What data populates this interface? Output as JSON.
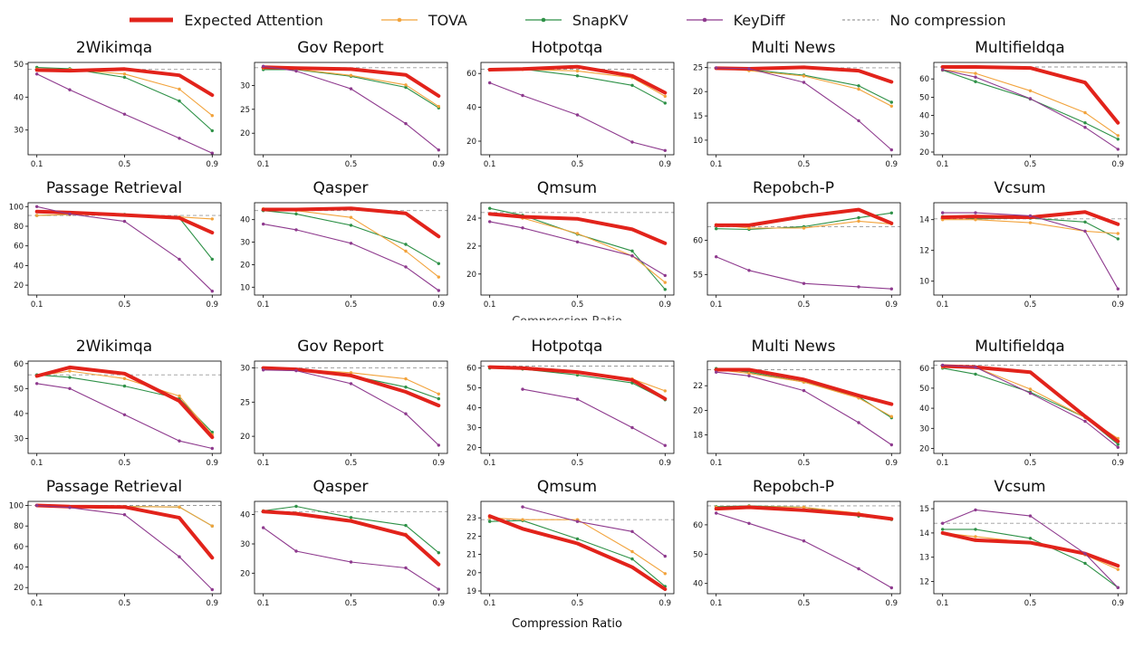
{
  "legend": {
    "items": [
      {
        "label": "Expected Attention",
        "color": "#e2231b",
        "style": "thick"
      },
      {
        "label": "TOVA",
        "color": "#f2a33c",
        "style": "marker"
      },
      {
        "label": "SnapKV",
        "color": "#2e9147",
        "style": "marker"
      },
      {
        "label": "KeyDiff",
        "color": "#8e3a8e",
        "style": "marker"
      },
      {
        "label": "No compression",
        "color": "#9a9a9a",
        "style": "dashed"
      }
    ]
  },
  "chart_data": {
    "type": "line",
    "xlabel": "Compression Ratio",
    "x": [
      0.1,
      0.25,
      0.5,
      0.75,
      0.9
    ],
    "xticks": [
      0.1,
      0.5,
      0.9
    ],
    "xlim": [
      0.06,
      0.94
    ],
    "series_names": [
      "Expected Attention",
      "TOVA",
      "SnapKV",
      "KeyDiff"
    ],
    "baseline_name": "No compression",
    "groups": [
      {
        "subplots": [
          {
            "title": "2Wikimqa",
            "ylim": [
              22.5,
              50.5
            ],
            "yticks": [
              30,
              40,
              50
            ],
            "no_compression": 48.4,
            "series": {
              "Expected Attention": [
                48.2,
                48.0,
                48.5,
                46.6,
                40.6
              ],
              "TOVA": [
                48.5,
                48.4,
                47.0,
                42.4,
                34.4
              ],
              "SnapKV": [
                49.0,
                48.6,
                46.0,
                38.8,
                29.8
              ],
              "KeyDiff": [
                47.0,
                42.2,
                34.8,
                27.5,
                23.0
              ]
            }
          },
          {
            "title": "Gov Report",
            "ylim": [
              15.5,
              34.8
            ],
            "yticks": [
              20,
              25,
              30
            ],
            "no_compression": 33.7,
            "series": {
              "Expected Attention": [
                33.8,
                33.6,
                33.4,
                32.2,
                27.8
              ],
              "TOVA": [
                33.6,
                33.4,
                32.1,
                30.1,
                25.6
              ],
              "SnapKV": [
                33.3,
                33.3,
                31.9,
                29.6,
                25.3
              ],
              "KeyDiff": [
                34.0,
                33.0,
                29.3,
                22.0,
                16.5
              ]
            }
          },
          {
            "title": "Hotpotqa",
            "ylim": [
              12,
              66.5
            ],
            "yticks": [
              20,
              40,
              60
            ],
            "no_compression": 62.5,
            "series": {
              "Expected Attention": [
                62.2,
                62.6,
                64.0,
                58.6,
                48.6
              ],
              "TOVA": [
                62.0,
                62.4,
                61.5,
                57.5,
                46.5
              ],
              "SnapKV": [
                62.0,
                62.6,
                58.6,
                53.0,
                42.5
              ],
              "KeyDiff": [
                54.5,
                47.0,
                35.5,
                19.5,
                14.5
              ]
            }
          },
          {
            "title": "Multi News",
            "ylim": [
              7,
              26
            ],
            "yticks": [
              10,
              15,
              20,
              25
            ],
            "no_compression": 24.9,
            "series": {
              "Expected Attention": [
                24.8,
                24.7,
                25.0,
                24.3,
                22.0
              ],
              "TOVA": [
                24.8,
                24.3,
                23.2,
                20.5,
                17.0
              ],
              "SnapKV": [
                24.8,
                24.5,
                23.4,
                21.2,
                17.8
              ],
              "KeyDiff": [
                24.9,
                24.7,
                21.9,
                14.0,
                8.0
              ]
            }
          },
          {
            "title": "Multifieldqa",
            "ylim": [
              18.5,
              69
            ],
            "yticks": [
              20,
              30,
              40,
              50,
              60
            ],
            "no_compression": 66.5,
            "series": {
              "Expected Attention": [
                66.5,
                66.5,
                66.0,
                58.0,
                36.0
              ],
              "TOVA": [
                65.0,
                63.0,
                53.5,
                41.5,
                29.0
              ],
              "SnapKV": [
                64.8,
                58.5,
                49.0,
                36.0,
                27.0
              ],
              "KeyDiff": [
                65.0,
                61.0,
                49.2,
                33.5,
                21.5
              ]
            }
          },
          {
            "title": "Passage Retrieval",
            "ylim": [
              10,
              104
            ],
            "yticks": [
              20,
              40,
              60,
              80,
              100
            ],
            "no_compression": 91,
            "series": {
              "Expected Attention": [
                95,
                94,
                91.5,
                88.5,
                73.5
              ],
              "TOVA": [
                91,
                92,
                91.5,
                89.5,
                87.5
              ],
              "SnapKV": [
                91,
                92,
                92,
                88.5,
                46.5
              ],
              "KeyDiff": [
                100,
                92.5,
                85,
                46.5,
                14
              ]
            }
          },
          {
            "title": "Qasper",
            "ylim": [
              6.5,
              47.5
            ],
            "yticks": [
              10,
              20,
              30,
              40
            ],
            "no_compression": 44,
            "series": {
              "Expected Attention": [
                44.5,
                44.5,
                45.0,
                42.8,
                32.5
              ],
              "TOVA": [
                44.8,
                44.0,
                41.0,
                26.0,
                14.5
              ],
              "SnapKV": [
                44.0,
                42.5,
                37.5,
                29.0,
                20.5
              ],
              "KeyDiff": [
                38.0,
                35.5,
                29.5,
                19.0,
                8.5
              ]
            }
          },
          {
            "title": "Qmsum",
            "ylim": [
              18.5,
              25.1
            ],
            "yticks": [
              20,
              22,
              24
            ],
            "no_compression": 24.4,
            "series": {
              "Expected Attention": [
                24.3,
                24.1,
                23.95,
                23.2,
                22.2
              ],
              "TOVA": [
                24.3,
                24.0,
                22.9,
                21.3,
                19.4
              ],
              "SnapKV": [
                24.7,
                24.2,
                22.85,
                21.65,
                18.9
              ],
              "KeyDiff": [
                23.75,
                23.3,
                22.3,
                21.3,
                19.9
              ]
            }
          },
          {
            "title": "Repobch-P",
            "ylim": [
              52,
              65.5
            ],
            "yticks": [
              55,
              60
            ],
            "no_compression": 62,
            "series": {
              "Expected Attention": [
                62.2,
                62.2,
                63.5,
                64.5,
                62.5
              ],
              "TOVA": [
                62.3,
                61.8,
                61.8,
                62.8,
                62.4
              ],
              "SnapKV": [
                61.7,
                61.6,
                62.0,
                63.3,
                64.0
              ],
              "KeyDiff": [
                57.6,
                55.6,
                53.7,
                53.2,
                52.9
              ]
            }
          },
          {
            "title": "Vcsum",
            "ylim": [
              9.1,
              15.1
            ],
            "yticks": [
              10,
              12,
              14
            ],
            "no_compression": 14.05,
            "series": {
              "Expected Attention": [
                14.15,
                14.2,
                14.15,
                14.5,
                13.7
              ],
              "TOVA": [
                14.0,
                14.0,
                13.8,
                13.25,
                13.1
              ],
              "SnapKV": [
                14.2,
                14.05,
                14.1,
                13.85,
                12.75
              ],
              "KeyDiff": [
                14.45,
                14.45,
                14.25,
                13.25,
                9.5
              ]
            }
          }
        ]
      },
      {
        "subplots": [
          {
            "title": "2Wikimqa",
            "ylim": [
              24,
              61
            ],
            "yticks": [
              30,
              40,
              50,
              60
            ],
            "no_compression": 55.5,
            "series": {
              "Expected Attention": [
                55.0,
                58.5,
                56.0,
                45.0,
                30.5
              ],
              "TOVA": [
                55.0,
                57.0,
                54.0,
                47.0,
                31.5
              ],
              "SnapKV": [
                55.5,
                54.5,
                51.0,
                46.0,
                32.5
              ],
              "KeyDiff": [
                52.0,
                50.0,
                39.5,
                29.0,
                26.0
              ]
            }
          },
          {
            "title": "Gov Report",
            "ylim": [
              17.5,
              31
            ],
            "yticks": [
              20,
              25,
              30
            ],
            "no_compression": 30,
            "series": {
              "Expected Attention": [
                30.0,
                29.8,
                28.9,
                26.5,
                24.5
              ],
              "TOVA": [
                30.0,
                29.8,
                29.3,
                28.4,
                26.2
              ],
              "SnapKV": [
                29.8,
                29.7,
                28.9,
                27.2,
                25.5
              ],
              "KeyDiff": [
                29.7,
                29.6,
                27.7,
                23.3,
                18.7
              ]
            }
          },
          {
            "title": "Hotpotqa",
            "ylim": [
              17,
              63.5
            ],
            "yticks": [
              20,
              30,
              40,
              50,
              60
            ],
            "no_compression": 61,
            "series": {
              "Expected Attention": [
                60.5,
                60.0,
                58.0,
                54.0,
                44.5
              ],
              "TOVA": [
                60.5,
                60.0,
                57.5,
                54.5,
                48.5
              ],
              "SnapKV": [
                60.0,
                59.5,
                56.5,
                52.5,
                44.0
              ],
              "KeyDiff": [
                null,
                49.3,
                44.3,
                30.0,
                21.0
              ]
            }
          },
          {
            "title": "Multi News",
            "ylim": [
              16.5,
              24
            ],
            "yticks": [
              18,
              20,
              22
            ],
            "no_compression": 23.3,
            "series": {
              "Expected Attention": [
                23.3,
                23.3,
                22.5,
                21.2,
                20.5
              ],
              "TOVA": [
                23.3,
                23.0,
                22.3,
                21.0,
                19.5
              ],
              "SnapKV": [
                23.4,
                23.1,
                22.3,
                21.1,
                19.4
              ],
              "KeyDiff": [
                23.1,
                22.8,
                21.6,
                19.0,
                17.2
              ]
            }
          },
          {
            "title": "Multifieldqa",
            "ylim": [
              17.5,
              63.5
            ],
            "yticks": [
              20,
              30,
              40,
              50,
              60
            ],
            "no_compression": 61.5,
            "series": {
              "Expected Attention": [
                61.0,
                60.5,
                58.0,
                36.0,
                23.5
              ],
              "TOVA": [
                60.5,
                60.5,
                49.5,
                35.5,
                25.0
              ],
              "SnapKV": [
                60.0,
                57.0,
                48.0,
                35.5,
                22.0
              ],
              "KeyDiff": [
                61.5,
                60.5,
                47.5,
                33.5,
                20.5
              ]
            }
          },
          {
            "title": "Passage Retrieval",
            "ylim": [
              14,
              104
            ],
            "yticks": [
              20,
              40,
              60,
              80,
              100
            ],
            "no_compression": 100,
            "series": {
              "Expected Attention": [
                100,
                99,
                98.5,
                88,
                49
              ],
              "TOVA": [
                100,
                99,
                99,
                98.5,
                80
              ],
              "SnapKV": [
                100,
                99,
                99,
                98.5,
                80
              ],
              "KeyDiff": [
                100,
                98,
                91,
                50,
                18
              ]
            }
          },
          {
            "title": "Qasper",
            "ylim": [
              13,
              44.5
            ],
            "yticks": [
              20,
              30,
              40
            ],
            "no_compression": 41,
            "series": {
              "Expected Attention": [
                41.0,
                40.3,
                37.8,
                33.0,
                23.0
              ],
              "TOVA": [
                41.2,
                40.5,
                38.0,
                33.3,
                22.8
              ],
              "SnapKV": [
                41.3,
                42.8,
                39.0,
                36.3,
                27.0
              ],
              "KeyDiff": [
                35.5,
                27.5,
                23.8,
                21.8,
                14.5
              ]
            }
          },
          {
            "title": "Qmsum",
            "ylim": [
              18.85,
              23.9
            ],
            "yticks": [
              19,
              20,
              21,
              22,
              23
            ],
            "no_compression": 22.9,
            "series": {
              "Expected Attention": [
                23.1,
                22.4,
                21.6,
                20.3,
                19.1
              ],
              "TOVA": [
                23.0,
                22.9,
                22.9,
                21.15,
                19.95
              ],
              "SnapKV": [
                22.8,
                22.85,
                21.85,
                20.75,
                19.25
              ],
              "KeyDiff": [
                null,
                23.6,
                22.8,
                22.25,
                20.9
              ]
            }
          },
          {
            "title": "Repobch-P",
            "ylim": [
              36.5,
              68
            ],
            "yticks": [
              40,
              50,
              60
            ],
            "no_compression": 66.5,
            "series": {
              "Expected Attention": [
                65.5,
                66.0,
                65.0,
                63.5,
                62.0
              ],
              "TOVA": [
                66.0,
                66.3,
                66.0,
                64.0,
                62.0
              ],
              "SnapKV": [
                66.2,
                66.5,
                66.0,
                63.0,
                61.8
              ],
              "KeyDiff": [
                64.0,
                60.5,
                54.5,
                45.0,
                38.5
              ]
            }
          },
          {
            "title": "Vcsum",
            "ylim": [
              11.5,
              15.3
            ],
            "yticks": [
              12,
              13,
              14,
              15
            ],
            "no_compression": 14.4,
            "series": {
              "Expected Attention": [
                14.0,
                13.7,
                13.6,
                13.15,
                12.65
              ],
              "TOVA": [
                14.0,
                13.85,
                13.6,
                13.1,
                12.5
              ],
              "SnapKV": [
                14.15,
                14.15,
                13.78,
                12.75,
                11.75
              ],
              "KeyDiff": [
                14.4,
                14.95,
                14.7,
                13.15,
                11.75
              ]
            }
          }
        ]
      }
    ]
  }
}
